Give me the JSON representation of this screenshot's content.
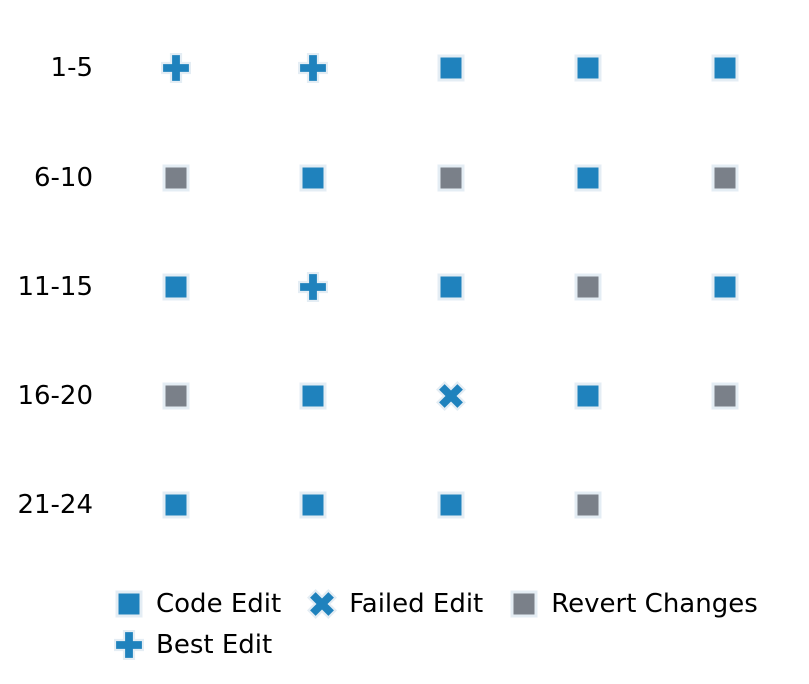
{
  "chart_data": {
    "type": "scatter",
    "title": "",
    "xlabel": "",
    "ylabel": "",
    "grid": false,
    "row_labels": [
      "1-5",
      "6-10",
      "11-15",
      "16-20",
      "21-24"
    ],
    "columns": 5,
    "cells": [
      [
        "best",
        "best",
        "code",
        "code",
        "code"
      ],
      [
        "revert",
        "code",
        "revert",
        "code",
        "revert"
      ],
      [
        "code",
        "best",
        "code",
        "revert",
        "code"
      ],
      [
        "revert",
        "code",
        "failed",
        "code",
        "revert"
      ],
      [
        "code",
        "code",
        "code",
        "revert",
        null
      ]
    ],
    "marker_colors": {
      "code": "#1f82bd",
      "best": "#1f82bd",
      "failed": "#1f82bd",
      "revert": "#7a8089"
    },
    "halo_color": "#e4edf4",
    "text_color": "#000000",
    "background": "#ffffff",
    "legend": [
      {
        "label": "Code Edit",
        "marker": "square",
        "color": "#1f82bd"
      },
      {
        "label": "Failed Edit",
        "marker": "x",
        "color": "#1f82bd"
      },
      {
        "label": "Revert Changes",
        "marker": "square",
        "color": "#7a8089"
      },
      {
        "label": "Best Edit",
        "marker": "plus",
        "color": "#1f82bd"
      }
    ],
    "legend_position": "bottom-left"
  }
}
